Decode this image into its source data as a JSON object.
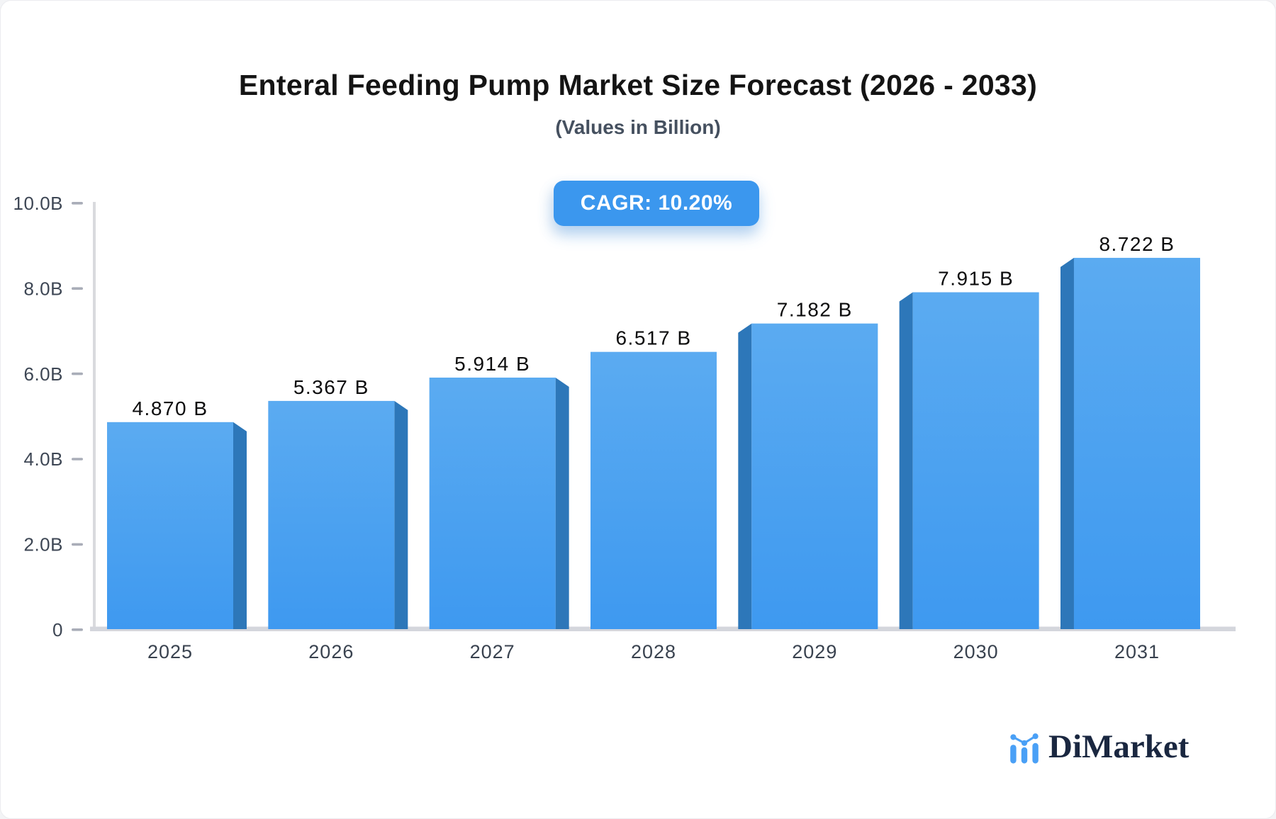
{
  "page": {
    "title": "Enteral Feeding Pump Market Size Forecast (2026 - 2033)",
    "subtitle": "(Values in Billion)",
    "badge_label": "CAGR: 10.20%"
  },
  "chart_data": {
    "type": "bar",
    "title": "Enteral Feeding Pump Market Size Forecast (2026 - 2033)",
    "subtitle": "(Values in Billion)",
    "annotation": "CAGR: 10.20%",
    "categories": [
      "2025",
      "2026",
      "2027",
      "2028",
      "2029",
      "2030",
      "2031"
    ],
    "values": [
      4.87,
      5.367,
      5.914,
      6.517,
      7.182,
      7.915,
      8.722
    ],
    "value_labels": [
      "4.870 B",
      "5.367 B",
      "5.914 B",
      "6.517 B",
      "7.182 B",
      "7.915 B",
      "8.722 B"
    ],
    "xlabel": "",
    "ylabel": "",
    "ylim": [
      0,
      10
    ],
    "ytick_values": [
      10,
      8,
      6,
      4,
      2,
      0
    ],
    "ytick_labels": [
      "10.0B",
      "8.0B",
      "6.0B",
      "4.0B",
      "2.0B",
      "0"
    ],
    "grid": false,
    "legend": "none",
    "style": "3d-bars-perspective-center",
    "colors": {
      "bar_front_top": "#5babf1",
      "bar_front_bottom": "#3e99f0",
      "bar_side": "#2d77b9",
      "axis_line": "#d9dade",
      "baseline": "#d4d6dc",
      "tick": "#a9adb8",
      "ytick_label": "#3d4654",
      "xtick_label": "#39424f",
      "value_label": "#0c0c0d",
      "badge_bg": "#3b97ee",
      "badge_text": "#ffffff"
    }
  },
  "footer": {
    "logo_text": "DiMarket",
    "logo_icon": "mini-bar-chart-icon",
    "logo_color": "#1a2740",
    "logo_icon_color": "#4aa0f6"
  }
}
